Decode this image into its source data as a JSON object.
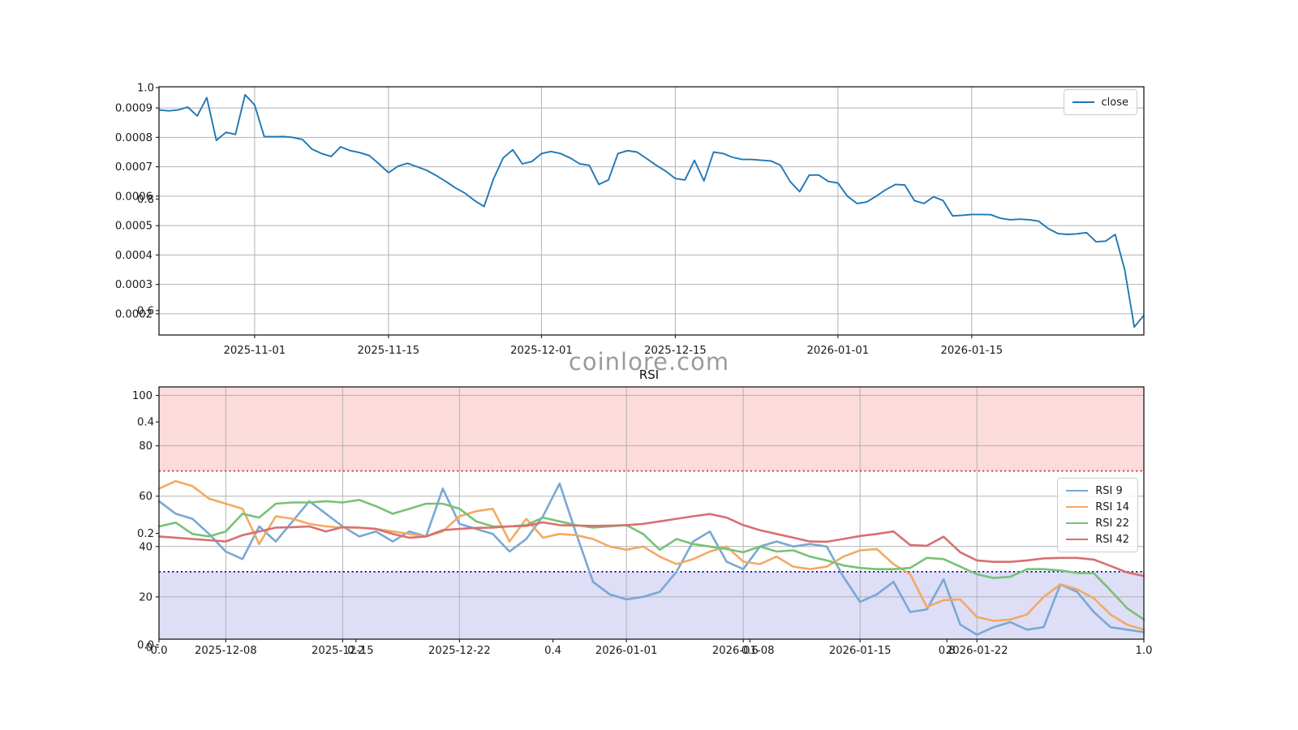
{
  "watermark": {
    "text": "coinlore.com"
  },
  "colors": {
    "close": "#1f77b4",
    "rsi9": "#79a8d4",
    "rsi14": "#f3a963",
    "rsi22": "#77c275",
    "rsi42": "#d87070",
    "grid": "#b2b2b2",
    "spine": "#2a2a2a",
    "tick_text": "#1a1a1a",
    "overbought_fill": "#fbdbdb",
    "oversold_fill": "#dedef7",
    "overbought_line": "#cc2b2b",
    "oversold_line": "#00008b",
    "watermark": "#9b9b9b"
  },
  "overlay_axis": {
    "xticks": [
      {
        "f": 0.0,
        "label": "0.0"
      },
      {
        "f": 0.2,
        "label": "0.2"
      },
      {
        "f": 0.4,
        "label": "0.4"
      },
      {
        "f": 0.6,
        "label": "0.6"
      },
      {
        "f": 0.8,
        "label": "0.8"
      },
      {
        "f": 1.0,
        "label": "1.0"
      }
    ],
    "yticks": [
      {
        "f": 1.0,
        "label": "1.0"
      },
      {
        "f": 0.8,
        "label": "0.8"
      },
      {
        "f": 0.6,
        "label": "0.6"
      },
      {
        "f": 0.4,
        "label": "0.4"
      },
      {
        "f": 0.2,
        "label": "0.2"
      },
      {
        "f": 0.0,
        "label": "0.0"
      }
    ]
  },
  "chart_data": [
    {
      "type": "line",
      "panel": "price",
      "title": "",
      "xlabel": "",
      "ylabel": "",
      "grid": true,
      "legend_position": "upper right",
      "x_start": "2025-10-22",
      "x_end": "2026-02-02",
      "ylim": [
        0.000128,
        0.000972
      ],
      "xticks": [
        {
          "day": 10,
          "label": "2025-11-01"
        },
        {
          "day": 24,
          "label": "2025-11-15"
        },
        {
          "day": 40,
          "label": "2025-12-01"
        },
        {
          "day": 54,
          "label": "2025-12-15"
        },
        {
          "day": 71,
          "label": "2026-01-01"
        },
        {
          "day": 85,
          "label": "2026-01-15"
        }
      ],
      "yticks": [
        {
          "v": 0.0009,
          "label": "0.0009"
        },
        {
          "v": 0.0008,
          "label": "0.0008"
        },
        {
          "v": 0.0007,
          "label": "0.0007"
        },
        {
          "v": 0.0006,
          "label": "0.0006"
        },
        {
          "v": 0.0005,
          "label": "0.0005"
        },
        {
          "v": 0.0004,
          "label": "0.0004"
        },
        {
          "v": 0.0003,
          "label": "0.0003"
        },
        {
          "v": 0.0002,
          "label": "0.0002"
        }
      ],
      "series": [
        {
          "name": "close",
          "color_key": "close",
          "values": [
            0.000893,
            0.00089,
            0.000893,
            0.000903,
            0.000873,
            0.000935,
            0.00079,
            0.000817,
            0.00081,
            0.000945,
            0.00091,
            0.000803,
            0.000802,
            0.000803,
            0.0008,
            0.000793,
            0.00076,
            0.000745,
            0.000735,
            0.000768,
            0.000755,
            0.000748,
            0.000738,
            0.00071,
            0.00068,
            0.000702,
            0.000712,
            0.0007,
            0.000688,
            0.00067,
            0.00065,
            0.000628,
            0.00061,
            0.000585,
            0.000565,
            0.00066,
            0.00073,
            0.000758,
            0.00071,
            0.000718,
            0.000745,
            0.000752,
            0.000745,
            0.00073,
            0.00071,
            0.000705,
            0.00064,
            0.000655,
            0.000745,
            0.000755,
            0.00075,
            0.000728,
            0.000705,
            0.000685,
            0.00066,
            0.000655,
            0.000722,
            0.000652,
            0.00075,
            0.000745,
            0.000732,
            0.000725,
            0.000725,
            0.000722,
            0.00072,
            0.000705,
            0.00065,
            0.000615,
            0.000672,
            0.000672,
            0.00065,
            0.000645,
            0.0006,
            0.000575,
            0.00058,
            0.0006,
            0.000622,
            0.00064,
            0.000638,
            0.000585,
            0.000575,
            0.000598,
            0.000585,
            0.000533,
            0.000535,
            0.000538,
            0.000538,
            0.000537,
            0.000525,
            0.00052,
            0.000522,
            0.00052,
            0.000515,
            0.00049,
            0.000473,
            0.00047,
            0.000472,
            0.000476,
            0.000445,
            0.000447,
            0.00047,
            0.00035,
            0.000155,
            0.000195
          ]
        }
      ]
    },
    {
      "type": "line",
      "panel": "rsi",
      "title": "RSI",
      "xlabel": "",
      "ylabel": "",
      "grid": true,
      "legend_position": "right",
      "x_start": "2025-12-04",
      "x_end": "2026-02-01",
      "ylim": [
        0,
        100
      ],
      "overbought": 70,
      "oversold": 30,
      "xticks": [
        {
          "day": 4,
          "label": "2025-12-08"
        },
        {
          "day": 11,
          "label": "2025-12-15"
        },
        {
          "day": 18,
          "label": "2025-12-22"
        },
        {
          "day": 28,
          "label": "2026-01-01"
        },
        {
          "day": 35,
          "label": "2026-01-08"
        },
        {
          "day": 42,
          "label": "2026-01-15"
        },
        {
          "day": 49,
          "label": "2026-01-22"
        }
      ],
      "yticks": [
        {
          "v": 100,
          "label": "100"
        },
        {
          "v": 80,
          "label": "80"
        },
        {
          "v": 60,
          "label": "60"
        },
        {
          "v": 40,
          "label": "40"
        },
        {
          "v": 20,
          "label": "20"
        },
        {
          "v": 0,
          "label": "0"
        }
      ],
      "series": [
        {
          "name": "RSI 9",
          "color_key": "rsi9",
          "values": [
            58,
            53,
            51,
            45,
            38,
            35,
            48,
            42,
            50,
            58,
            53,
            48,
            44,
            46,
            42,
            46,
            44,
            63,
            49,
            47,
            45,
            38,
            43,
            52,
            65,
            45,
            26,
            21,
            19,
            20,
            22,
            30,
            42,
            46,
            34,
            31,
            40,
            42,
            40,
            41,
            40,
            28,
            18,
            21,
            26,
            14,
            15,
            27,
            9,
            5,
            8,
            10,
            7,
            8,
            25,
            22,
            14,
            8,
            7,
            6
          ]
        },
        {
          "name": "RSI 14",
          "color_key": "rsi14",
          "values": [
            63,
            66,
            64,
            59,
            57,
            55,
            41,
            52,
            51,
            49,
            48,
            47.5,
            47.5,
            47,
            46,
            45,
            44,
            46,
            52,
            54,
            55,
            42,
            51,
            43.5,
            45,
            44.5,
            43,
            40,
            38.7,
            40,
            36,
            33,
            35,
            38,
            40,
            34,
            33,
            36,
            32,
            31,
            32,
            36,
            38.5,
            39,
            33,
            29,
            16,
            18.7,
            19,
            12,
            10.5,
            11,
            13,
            20,
            25,
            23,
            19.5,
            13,
            9,
            7
          ]
        },
        {
          "name": "RSI 22",
          "color_key": "rsi22",
          "values": [
            48,
            49.5,
            45,
            44,
            46,
            53,
            51.5,
            57,
            57.5,
            57.5,
            58,
            57.5,
            58.5,
            56,
            53,
            55,
            57,
            57,
            55,
            50,
            48,
            48,
            48.5,
            51.5,
            50,
            48.5,
            47.5,
            48,
            48.5,
            45,
            38.7,
            43,
            41,
            40,
            39,
            37.7,
            40,
            38,
            38.5,
            36,
            34.5,
            32.5,
            31.5,
            31,
            31,
            31.5,
            35.5,
            35,
            32,
            29,
            27.5,
            28,
            31,
            31,
            30.5,
            29.5,
            29.4,
            22.6,
            15.5,
            11
          ]
        },
        {
          "name": "RSI 42",
          "color_key": "rsi42",
          "values": [
            44,
            43.5,
            43,
            42.5,
            42,
            44.5,
            46,
            47.5,
            47.7,
            48,
            46,
            47.7,
            47.5,
            47,
            45,
            43.5,
            44,
            46.5,
            47,
            47.4,
            47.5,
            48,
            48.2,
            49.6,
            48.5,
            48.3,
            48.2,
            48.3,
            48.5,
            49,
            50,
            51,
            52,
            52.9,
            51.5,
            48.5,
            46.5,
            45,
            43.5,
            42,
            41.9,
            43,
            44.2,
            45,
            46,
            40.6,
            40.3,
            43.9,
            37.7,
            34.5,
            33.9,
            33.9,
            34.5,
            35.3,
            35.5,
            35.5,
            34.8,
            32.3,
            29.7,
            28.3
          ]
        }
      ]
    }
  ]
}
